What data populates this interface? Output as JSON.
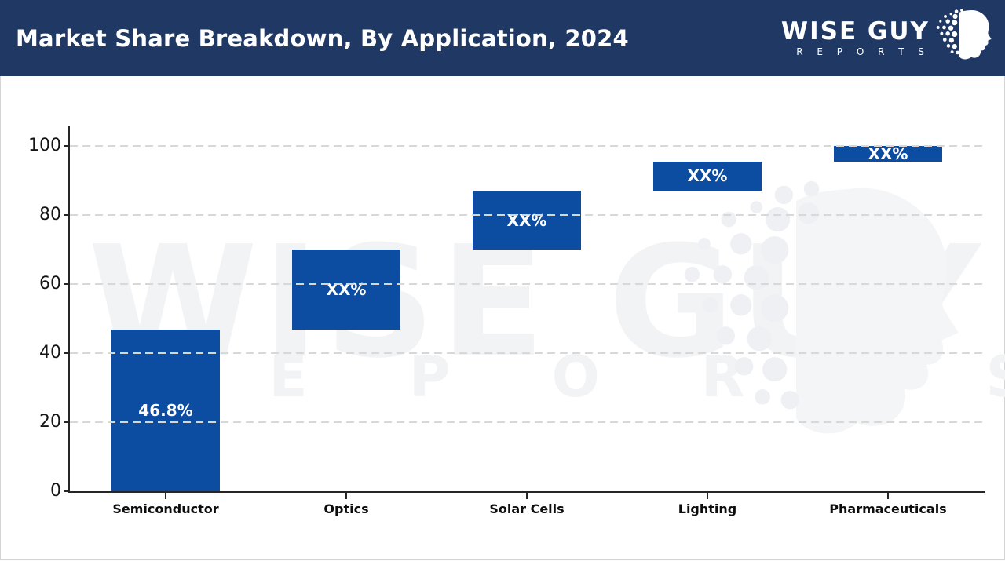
{
  "header": {
    "title": "Market Share Breakdown, By Application, 2024",
    "brand": {
      "line1": "WISE GUY",
      "line2": "R E P O R T S"
    }
  },
  "watermark": {
    "line1": "WISE GUY",
    "line2": "R E P O R T S"
  },
  "footer": {},
  "chart_data": {
    "type": "bar",
    "subtype": "waterfall",
    "title": "Market Share Breakdown, By Application, 2024",
    "categories": [
      "Semiconductor",
      "Optics",
      "Solar Cells",
      "Lighting",
      "Pharmaceuticals"
    ],
    "segments": [
      {
        "category": "Semiconductor",
        "start": 0,
        "end": 46.8,
        "label": "46.8%"
      },
      {
        "category": "Optics",
        "start": 46.8,
        "end": 70,
        "label": "XX%"
      },
      {
        "category": "Solar Cells",
        "start": 70,
        "end": 87,
        "label": "XX%"
      },
      {
        "category": "Lighting",
        "start": 87,
        "end": 95.5,
        "label": "XX%"
      },
      {
        "category": "Pharmaceuticals",
        "start": 95.5,
        "end": 100,
        "label": "XX%"
      }
    ],
    "visible_value_labels": [
      "46.8%",
      "XX%",
      "XX%",
      "XX%",
      "XX%"
    ],
    "xlabel": "",
    "ylabel": "",
    "ylim": [
      0,
      106
    ],
    "yticks": [
      0,
      20,
      40,
      60,
      80,
      100
    ],
    "grid": "horizontal-dashed",
    "legend": null,
    "bar_color": "#0c4da2"
  },
  "colors": {
    "header_bg": "#203864",
    "bar": "#0c4da2",
    "gridline": "#d8d8d8",
    "axis": "#262626",
    "watermark": "#f2f3f5"
  }
}
